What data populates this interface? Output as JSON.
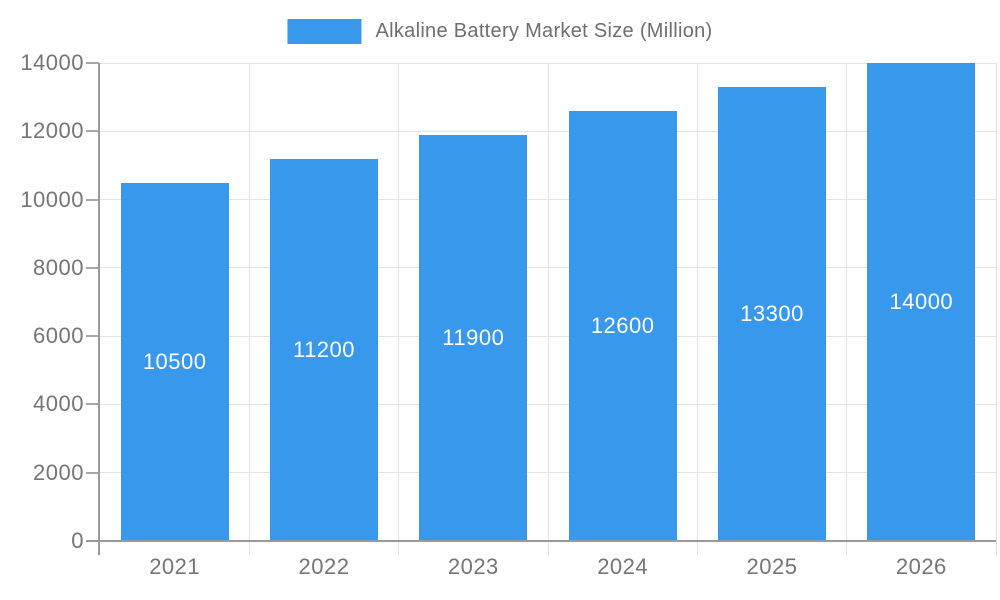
{
  "legend": {
    "label": "Alkaline Battery Market Size (Million)"
  },
  "chart_data": {
    "type": "bar",
    "title": "Alkaline Battery Market Size (Million)",
    "categories": [
      "2021",
      "2022",
      "2023",
      "2024",
      "2025",
      "2026"
    ],
    "values": [
      10500,
      11200,
      11900,
      12600,
      13300,
      14000
    ],
    "xlabel": "",
    "ylabel": "",
    "ylim": [
      0,
      14000
    ],
    "yticks": [
      0,
      2000,
      4000,
      6000,
      8000,
      10000,
      12000,
      14000
    ],
    "grid": true,
    "legend_position": "top-center",
    "value_labels": "centered-inside-bars",
    "colors": {
      "bar": "#3899EC",
      "value_label": "#FFFFFF",
      "axis": "#9A9A9A",
      "tick": "#A8A8A8",
      "gridline": "#E3E3E3",
      "tick_label": "#757575",
      "legend_text": "#6E6E6E",
      "background": "#FFFFFF"
    }
  }
}
